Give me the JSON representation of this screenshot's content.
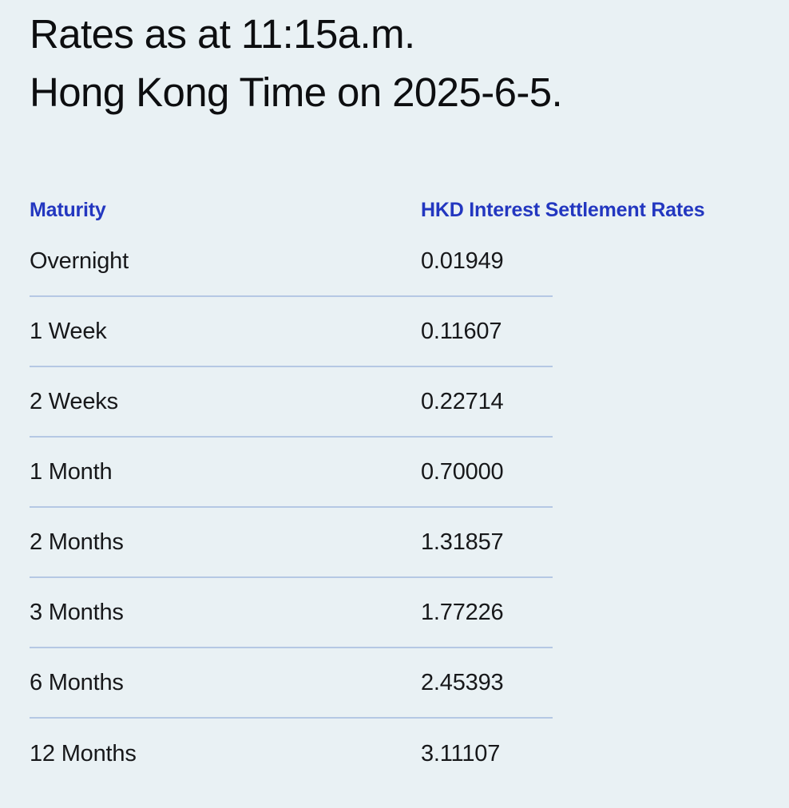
{
  "page": {
    "background_color": "#e9f1f4",
    "accent_color": "#2337c0",
    "divider_color": "#b5c8e4",
    "text_color": "#17181a"
  },
  "header": {
    "title_line1": "Rates as at 11:15a.m.",
    "title_line2": "Hong Kong Time on 2025-6-5."
  },
  "table": {
    "columns": [
      "Maturity",
      "HKD Interest Settlement Rates"
    ],
    "rows": [
      {
        "maturity": "Overnight",
        "rate": "0.01949"
      },
      {
        "maturity": "1 Week",
        "rate": "0.11607"
      },
      {
        "maturity": "2 Weeks",
        "rate": "0.22714"
      },
      {
        "maturity": "1 Month",
        "rate": "0.70000"
      },
      {
        "maturity": "2 Months",
        "rate": "1.31857"
      },
      {
        "maturity": "3 Months",
        "rate": "1.77226"
      },
      {
        "maturity": "6 Months",
        "rate": "2.45393"
      },
      {
        "maturity": "12 Months",
        "rate": "3.11107"
      }
    ]
  }
}
